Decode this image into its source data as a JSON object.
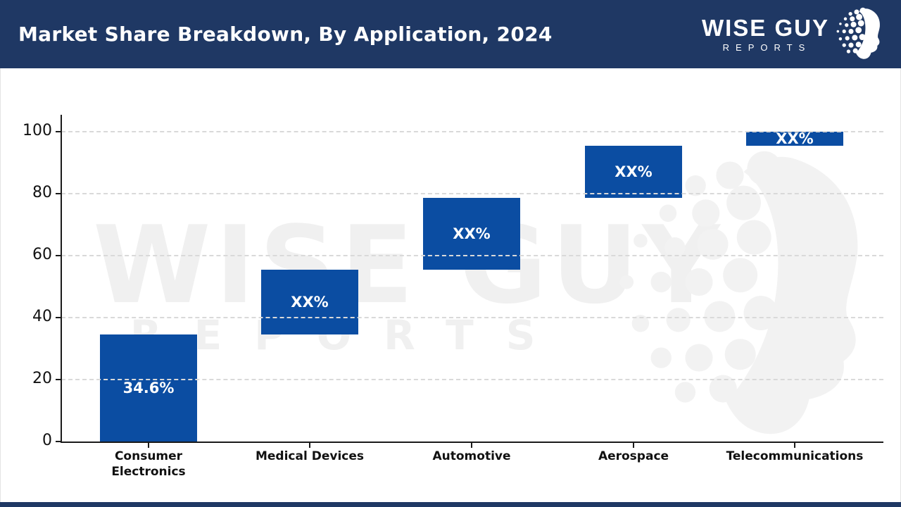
{
  "header": {
    "title": "Market Share Breakdown, By Application, 2024",
    "logo": {
      "line1": "WISE GUY",
      "line2": "REPORTS"
    }
  },
  "watermark": {
    "line1": "WISE GUY",
    "line2": "REPORTS"
  },
  "colors": {
    "header_bg": "#1f3864",
    "footer_bg": "#1f3864",
    "bar": "#0b4da2",
    "bar_label": "#ffffff",
    "grid": "#d9d9d9",
    "axis": "#1a1a1a",
    "watermark": "#f0f0f0"
  },
  "chart_data": {
    "type": "bar",
    "subtype": "waterfall-floating-bars",
    "title": "Market Share Breakdown, By Application, 2024",
    "categories": [
      "Consumer Electronics",
      "Medical Devices",
      "Automotive",
      "Aerospace",
      "Telecommunications"
    ],
    "category_lines": [
      [
        "Consumer",
        "Electronics"
      ],
      [
        "Medical Devices"
      ],
      [
        "Automotive"
      ],
      [
        "Aerospace"
      ],
      [
        "Telecommunications"
      ]
    ],
    "segments": [
      {
        "category": "Consumer Electronics",
        "start": 0,
        "end": 34.6,
        "label": "34.6%"
      },
      {
        "category": "Medical Devices",
        "start": 34.6,
        "end": 55.5,
        "label": "XX%"
      },
      {
        "category": "Automotive",
        "start": 55.5,
        "end": 78.6,
        "label": "XX%"
      },
      {
        "category": "Aerospace",
        "start": 78.6,
        "end": 95.5,
        "label": "XX%"
      },
      {
        "category": "Telecommunications",
        "start": 95.5,
        "end": 100,
        "label": "XX%"
      }
    ],
    "yticks": [
      0,
      20,
      40,
      60,
      80,
      100
    ],
    "ylim": [
      0,
      105
    ],
    "xlabel": "",
    "ylabel": "",
    "grid": "dashed-horizontal",
    "legend": "none"
  }
}
